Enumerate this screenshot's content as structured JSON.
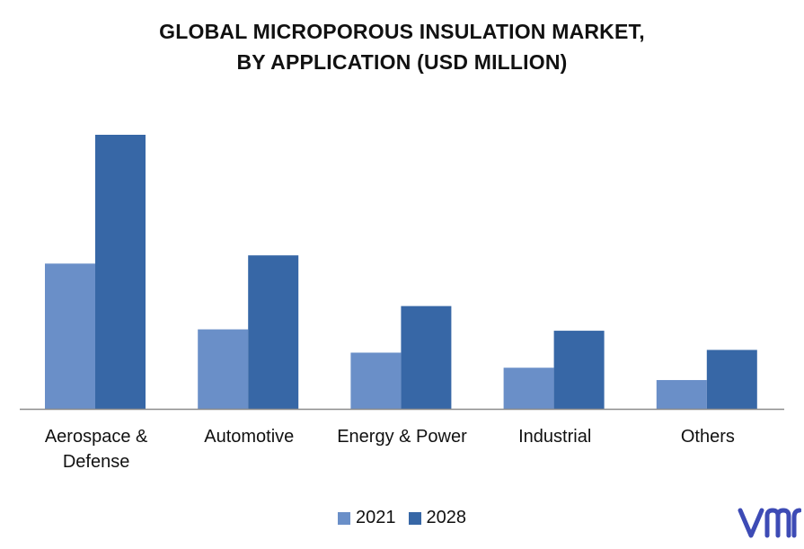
{
  "chart_data": {
    "type": "bar",
    "title_lines": [
      "GLOBAL MICROPOROUS INSULATION MARKET,",
      "BY APPLICATION (USD MILLION)"
    ],
    "categories": [
      [
        "Aerospace &",
        "Defense"
      ],
      [
        "Automotive"
      ],
      [
        "Energy & Power"
      ],
      [
        "Industrial"
      ],
      [
        "Others"
      ]
    ],
    "series": [
      {
        "name": "2021",
        "color": "#6a8fc8",
        "values": [
          53,
          29,
          20.5,
          15,
          10.5
        ]
      },
      {
        "name": "2028",
        "color": "#3767a6",
        "values": [
          100,
          56,
          37.5,
          28.5,
          21.5
        ]
      }
    ],
    "ylim": [
      0,
      100
    ],
    "grid": false,
    "legend_position": "bottom"
  },
  "logo": {
    "text": "vmr",
    "color": "#3d4bb5",
    "icon": "vmr-logo-icon"
  }
}
